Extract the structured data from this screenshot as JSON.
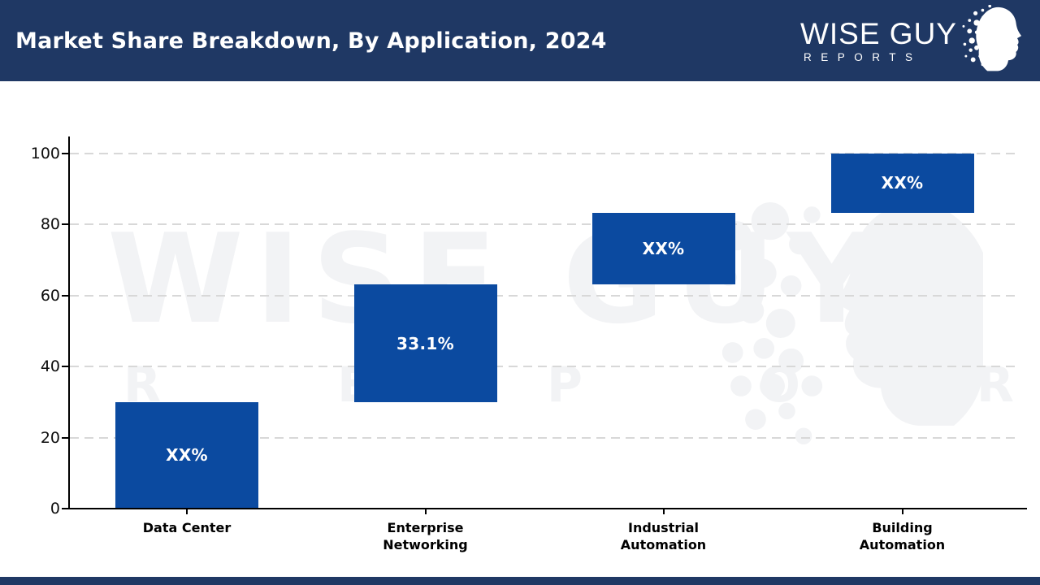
{
  "header": {
    "title": "Market Share Breakdown, By Application, 2024",
    "logo": {
      "primary": "WISE GUY",
      "secondary": "REPORTS"
    }
  },
  "watermark": {
    "primary": "WISE GUY",
    "secondary": "R E P O R T S"
  },
  "footer": {},
  "colors": {
    "header_bg": "#1f3864",
    "footer_bg": "#1f3864",
    "bar": "#0b4aa0",
    "bar_label": "#ffffff",
    "grid": "#d8d8d8",
    "axis": "#000000",
    "watermark": "#f2f3f5"
  },
  "chart_data": {
    "type": "bar",
    "variant": "floating-breakdown-waterfall",
    "title": "Market Share Breakdown, By Application, 2024",
    "categories": [
      "Data Center",
      "Enterprise\nNetworking",
      "Industrial\nAutomation",
      "Building\nAutomation"
    ],
    "bars": [
      {
        "category": "Data Center",
        "label": "XX%",
        "start": 0,
        "end": 30
      },
      {
        "category": "Enterprise Networking",
        "label": "33.1%",
        "start": 30,
        "end": 63.1
      },
      {
        "category": "Industrial Automation",
        "label": "XX%",
        "start": 63.1,
        "end": 83.4
      },
      {
        "category": "Building Automation",
        "label": "XX%",
        "start": 83.4,
        "end": 100
      }
    ],
    "xlabel": "",
    "ylabel": "",
    "y_ticks": [
      0,
      20,
      40,
      60,
      80,
      100
    ],
    "ylim": [
      0,
      105
    ],
    "grid": "horizontal-dashed",
    "legend": "none"
  }
}
